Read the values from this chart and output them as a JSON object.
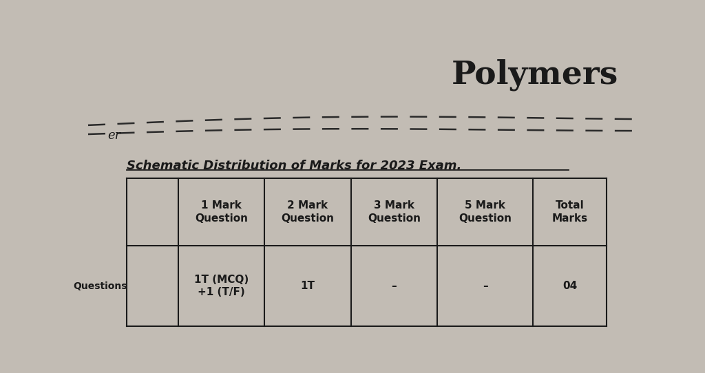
{
  "title": "Polymers",
  "subtitle": "Schematic Distribution of Marks for 2023 Exam.",
  "background_color": "#c2bcb4",
  "title_color": "#1a1a1a",
  "dashed_line_color": "#2a2a2a",
  "table_headers": [
    "",
    "1 Mark\nQuestion",
    "2 Mark\nQuestion",
    "3 Mark\nQuestion",
    "5 Mark\nQuestion",
    "Total\nMarks"
  ],
  "table_row_label": "Questions",
  "table_row_data": [
    "1T (MCQ)\n+1 (T/F)",
    "1T",
    "–",
    "–",
    "04"
  ],
  "table_border_color": "#1a1a1a",
  "subtitle_underline_color": "#1a1a1a",
  "er_label": "er"
}
